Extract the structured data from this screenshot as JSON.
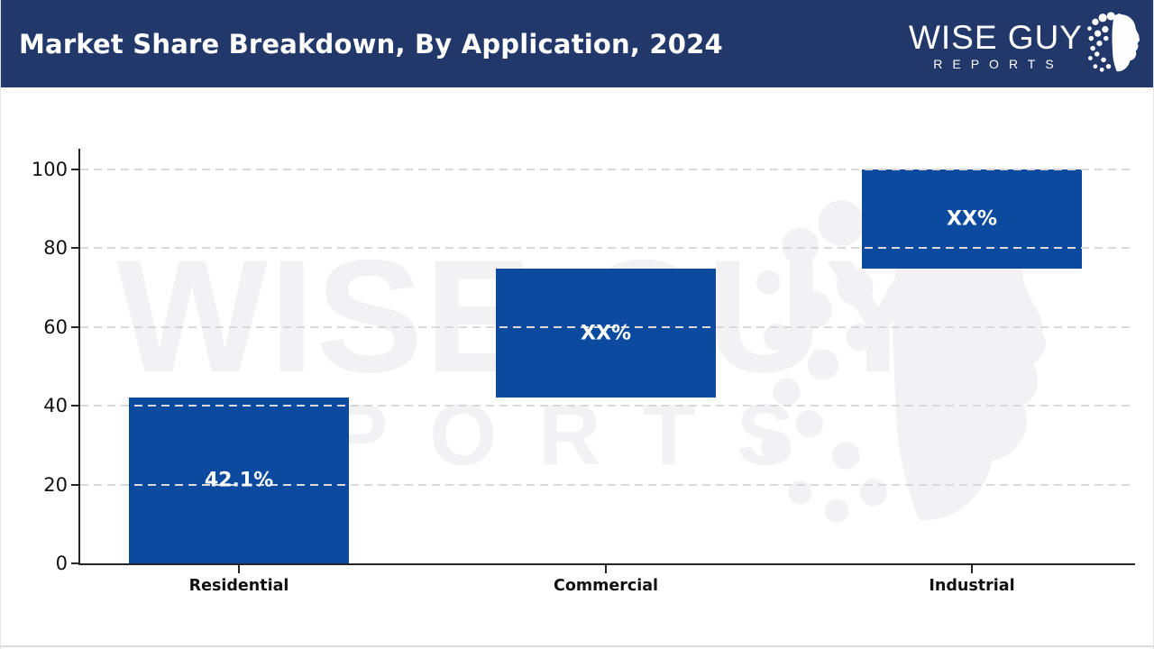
{
  "header": {
    "title": "Market Share Breakdown, By Application, 2024",
    "logo": {
      "line1": "WISE GUY",
      "line2": "REPORTS"
    }
  },
  "watermark": {
    "line1": "WISE GUY",
    "line2": "REPORTS"
  },
  "colors": {
    "header_bg": "#22386B",
    "bar": "#0B4A9F",
    "grid": "#D9D9D9",
    "axis": "#262626",
    "bar_label": "#FFFFFF",
    "watermark": "#F2F2F5"
  },
  "chart_data": {
    "type": "bar",
    "variant": "floating-stacked-percent",
    "title": "Market Share Breakdown, By Application, 2024",
    "categories": [
      "Residential",
      "Commercial",
      "Industrial"
    ],
    "bars": [
      {
        "category": "Residential",
        "start": 0,
        "end": 42.1,
        "label": "42.1%"
      },
      {
        "category": "Commercial",
        "start": 42.1,
        "end": 74.7,
        "label": "XX%"
      },
      {
        "category": "Industrial",
        "start": 74.7,
        "end": 100,
        "label": "XX%"
      }
    ],
    "ylim": [
      0,
      100
    ],
    "yticks": [
      0,
      20,
      40,
      60,
      80,
      100
    ],
    "xlabel": "",
    "ylabel": "",
    "grid": "horizontal-dashed",
    "legend": "none"
  }
}
